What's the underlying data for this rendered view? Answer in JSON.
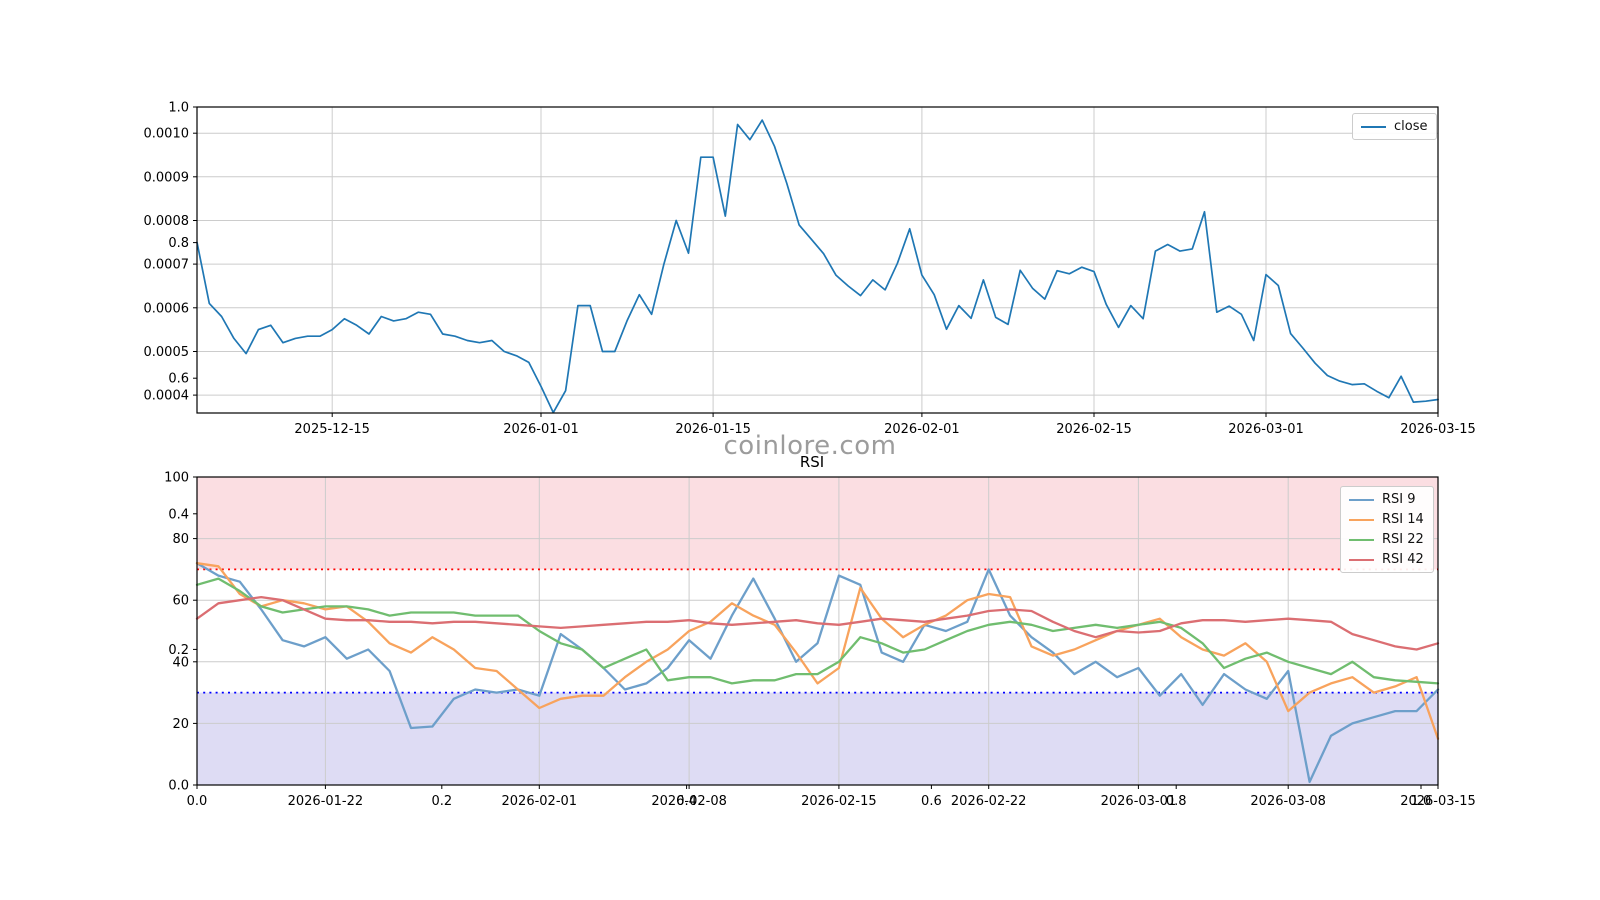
{
  "watermark": "coinlore.com",
  "colors": {
    "grid": "#cccccc",
    "spine": "#000000",
    "close_line": "#1f77b4",
    "overbought_band": "#fbdee2",
    "oversold_band": "#dedcf4",
    "overbought_line": "#ff0000",
    "oversold_line": "#0000ff",
    "tick_text": "#000000"
  },
  "chart_data": [
    {
      "type": "line",
      "title": "",
      "xlabel": "",
      "ylabel": "",
      "x_start": "2025-12-04",
      "x_end": "2026-03-15",
      "x_tick_labels": [
        "2025-12-15",
        "2026-01-01",
        "2026-01-15",
        "2026-02-01",
        "2026-02-15",
        "2026-03-01",
        "2026-03-15"
      ],
      "y_tick_labels": [
        "0.0004",
        "0.0005",
        "0.0006",
        "0.0007",
        "0.0008",
        "0.0009",
        "0.0010"
      ],
      "y_ticks": [
        0.0004,
        0.0005,
        0.0006,
        0.0007,
        0.0008,
        0.0009,
        0.001
      ],
      "ylim": [
        0.000359,
        0.00106
      ],
      "grid": true,
      "legend_position": "upper right",
      "overlay_y_tick_labels": [
        "1.0",
        "0.8",
        "0.6"
      ],
      "series": [
        {
          "name": "close",
          "color": "#1f77b4",
          "values": [
            0.00075,
            0.00061,
            0.00058,
            0.00053,
            0.000495,
            0.00055,
            0.00056,
            0.00052,
            0.00053,
            0.000535,
            0.000535,
            0.00055,
            0.000575,
            0.00056,
            0.00054,
            0.00058,
            0.00057,
            0.000575,
            0.00059,
            0.000585,
            0.00054,
            0.000535,
            0.000525,
            0.00052,
            0.000525,
            0.0005,
            0.00049,
            0.000475,
            0.00042,
            0.00036,
            0.00041,
            0.000605,
            0.000605,
            0.0005,
            0.0005,
            0.00057,
            0.00063,
            0.000585,
            0.0007,
            0.0008,
            0.000725,
            0.000945,
            0.000945,
            0.00081,
            0.00102,
            0.000985,
            0.00103,
            0.00097,
            0.000885,
            0.00079,
            0.000757,
            0.000724,
            0.000675,
            0.00065,
            0.000628,
            0.000664,
            0.000641,
            0.000702,
            0.000781,
            0.000675,
            0.00063,
            0.000551,
            0.000605,
            0.000576,
            0.000664,
            0.000578,
            0.000562,
            0.000686,
            0.000645,
            0.00062,
            0.000685,
            0.000678,
            0.000693,
            0.000683,
            0.000608,
            0.000555,
            0.000605,
            0.000575,
            0.00073,
            0.000745,
            0.00073,
            0.000735,
            0.00082,
            0.00059,
            0.000604,
            0.000585,
            0.000525,
            0.000676,
            0.000651,
            0.000541,
            0.000508,
            0.000473,
            0.000445,
            0.000432,
            0.000424,
            0.000426,
            0.000409,
            0.000394,
            0.000443,
            0.000384,
            0.000386,
            0.00039
          ]
        }
      ]
    },
    {
      "type": "line",
      "title": "RSI",
      "xlabel": "",
      "ylabel": "",
      "x_start": "2026-01-16",
      "x_end": "2026-03-15",
      "x_tick_labels": [
        "2026-01-22",
        "2026-02-01",
        "2026-02-08",
        "2026-02-15",
        "2026-02-22",
        "2026-03-01",
        "2026-03-08",
        "2026-03-15"
      ],
      "y_tick_labels": [
        "20",
        "40",
        "60",
        "80",
        "100"
      ],
      "y_ticks": [
        20,
        40,
        60,
        80,
        100
      ],
      "ylim": [
        0,
        100
      ],
      "grid": true,
      "legend_position": "upper right",
      "overbought_level": 70,
      "oversold_level": 30,
      "overlay_x_tick_labels": [
        "0.0",
        "0.2",
        "0.4",
        "0.6",
        "0.8",
        "1.0"
      ],
      "overlay_y_tick_labels": [
        "0.4",
        "0.2",
        "0.0"
      ],
      "series": [
        {
          "name": "RSI 9",
          "color": "#6d9fca",
          "values": [
            72,
            68,
            66,
            57,
            47,
            45,
            48,
            41,
            44,
            37,
            18.5,
            19,
            28,
            31,
            30,
            31,
            29,
            49,
            44,
            38,
            31,
            33,
            38,
            47,
            41,
            55,
            67,
            54,
            40,
            46,
            68,
            65,
            43,
            40,
            52,
            50,
            53,
            70,
            55,
            48,
            43,
            36,
            40,
            35,
            38,
            29,
            36,
            26,
            36,
            31,
            28,
            37,
            1,
            16,
            20,
            22,
            24,
            24,
            31
          ]
        },
        {
          "name": "RSI 14",
          "color": "#f8a35d",
          "values": [
            72,
            71,
            62,
            58,
            60,
            59,
            57,
            58,
            53,
            46,
            43,
            48,
            44,
            38,
            37,
            31,
            25,
            28,
            29,
            29,
            35,
            40,
            44,
            50,
            53,
            59,
            55,
            52,
            43,
            33,
            38,
            64,
            54,
            48,
            52,
            55,
            60,
            62,
            61,
            45,
            42,
            44,
            47,
            50,
            52,
            54,
            48,
            44,
            42,
            46,
            40,
            24,
            30,
            33,
            35,
            30,
            32,
            35,
            15
          ]
        },
        {
          "name": "RSI 22",
          "color": "#70bd6f",
          "values": [
            65,
            67,
            63,
            58,
            56,
            57,
            58,
            58,
            57,
            55,
            56,
            56,
            56,
            55,
            55,
            55,
            50,
            46,
            44,
            38,
            41,
            44,
            34,
            35,
            35,
            33,
            34,
            34,
            36,
            36,
            40,
            48,
            46,
            43,
            44,
            47,
            50,
            52,
            53,
            52,
            50,
            51,
            52,
            51,
            52,
            53,
            51,
            46,
            38,
            41,
            43,
            40,
            38,
            36,
            40,
            35,
            34,
            33.5,
            33
          ]
        },
        {
          "name": "RSI 42",
          "color": "#db6e72",
          "values": [
            54,
            59,
            60,
            61,
            60,
            57,
            54,
            53.5,
            53.5,
            53,
            53,
            52.5,
            53,
            53,
            52.5,
            52,
            51.5,
            51,
            51.5,
            52,
            52.5,
            53,
            53,
            53.5,
            52.5,
            52,
            52.5,
            53,
            53.5,
            52.5,
            52,
            53,
            54,
            53.5,
            53,
            54,
            55,
            56.5,
            57,
            56.5,
            53,
            50,
            48,
            50,
            49.5,
            50,
            52.5,
            53.5,
            53.5,
            53,
            53.5,
            54,
            53.5,
            53,
            49,
            47,
            45,
            44,
            46
          ]
        }
      ]
    }
  ]
}
